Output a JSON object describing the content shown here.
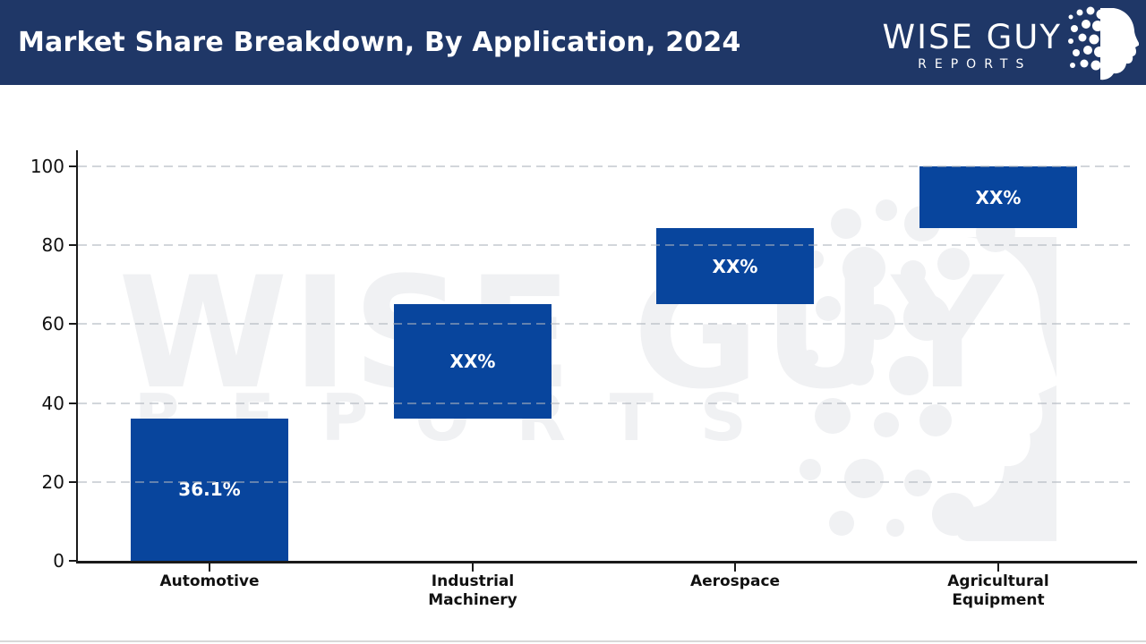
{
  "header": {
    "title": "Market Share Breakdown, By Application, 2024",
    "logo_line1": "WISE GUY",
    "logo_line2": "REPORTS"
  },
  "watermark": {
    "line1": "WISE GUY",
    "line2": "REPORTS"
  },
  "colors": {
    "header_bg": "#1F3767",
    "bar": "#08459D",
    "grid": "#D6D6D6",
    "axis": "#1A1A1A",
    "watermark": "#F0F1F3",
    "bar_label": "#FFFFFF",
    "footer_rule": "#D8D8D8"
  },
  "chart_data": {
    "type": "bar",
    "subtype": "floating-waterfall",
    "title": "Market Share Breakdown, By Application, 2024",
    "categories": [
      "Automotive",
      "Industrial Machinery",
      "Aerospace",
      "Agricultural Equipment"
    ],
    "category_lines": [
      [
        "Automotive"
      ],
      [
        "Industrial",
        "Machinery"
      ],
      [
        "Aerospace"
      ],
      [
        "Agricultural",
        "Equipment"
      ]
    ],
    "segments": [
      {
        "category": "Automotive",
        "start": 0,
        "end": 36.1,
        "label": "36.1%"
      },
      {
        "category": "Industrial Machinery",
        "start": 36.1,
        "end": 65.0,
        "label": "XX%"
      },
      {
        "category": "Aerospace",
        "start": 65.0,
        "end": 84.3,
        "label": "XX%"
      },
      {
        "category": "Agricultural Equipment",
        "start": 84.3,
        "end": 100,
        "label": "XX%"
      }
    ],
    "y_ticks": [
      0,
      20,
      40,
      60,
      80,
      100
    ],
    "ylim": [
      0,
      104
    ],
    "xlabel": "",
    "ylabel": "",
    "grid": "dashed-horizontal-over-bars",
    "legend": "none",
    "bar_color": "#08459D",
    "label_color": "#FFFFFF"
  }
}
